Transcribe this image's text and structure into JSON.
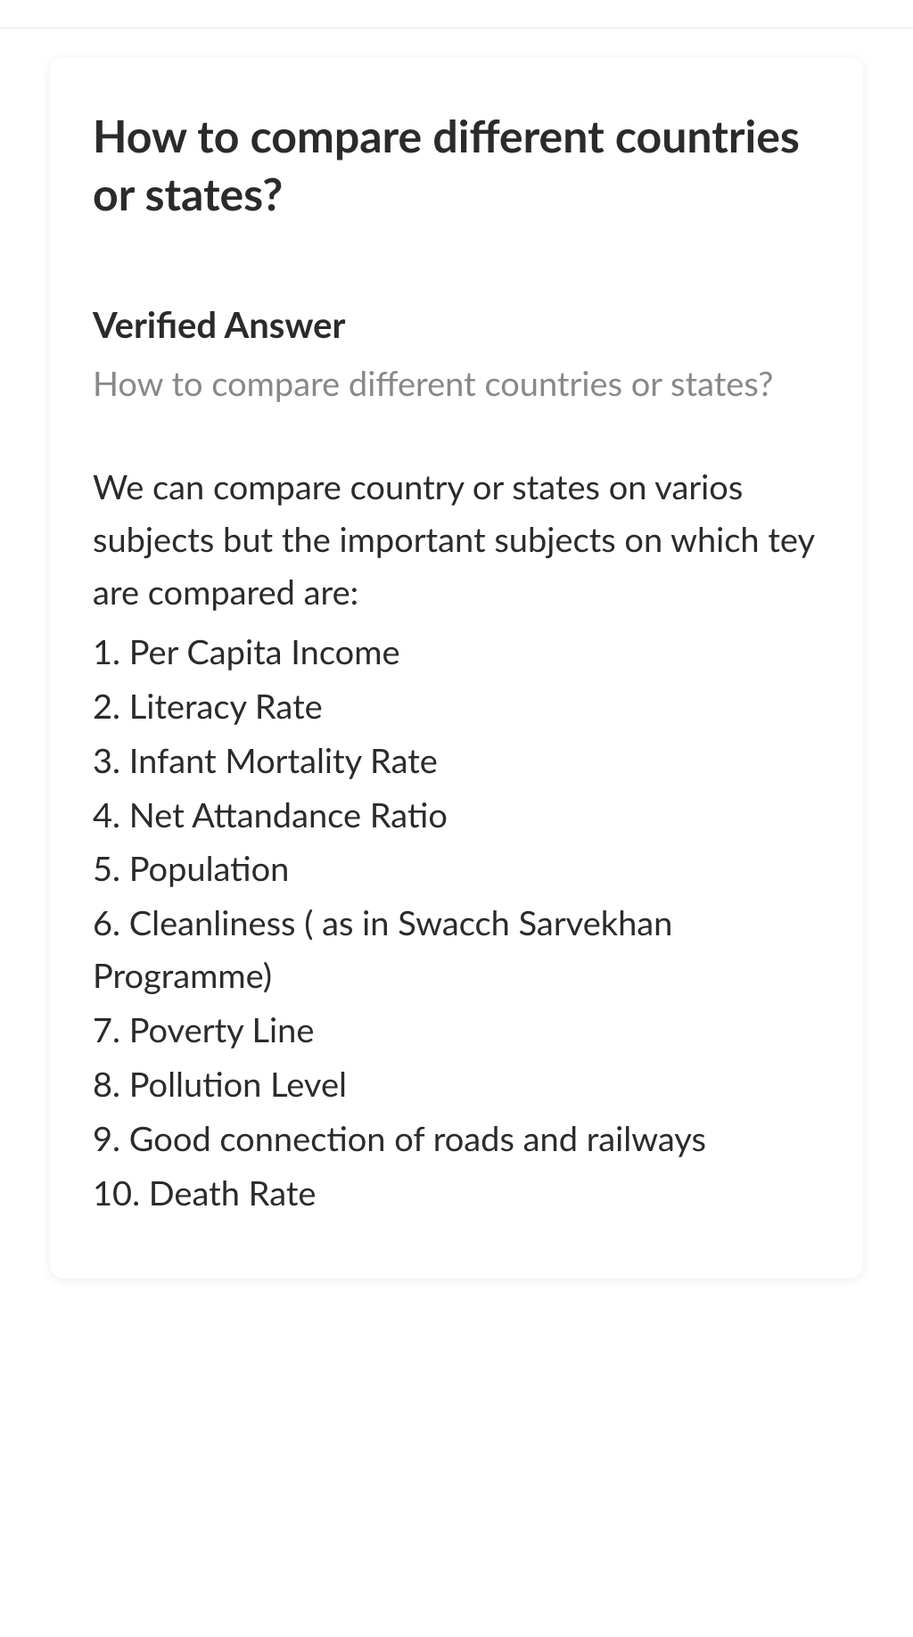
{
  "card": {
    "title": "How to compare different countries or states?",
    "verified_label": "Verified Answer",
    "question_repeat": "How to compare different countries or states?",
    "answer_intro": "We can compare country or states on varios subjects but the important subjects on which tey are compared are:",
    "list": [
      "1. Per Capita Income",
      "2. Literacy Rate",
      "3. Infant Mortality Rate",
      "4. Net Attandance Ratio",
      "5. Population",
      "6. Cleanliness ( as in Swacch Sarvekhan Programme)",
      "7. Poverty Line",
      "8. Pollution Level",
      "9. Good connection of roads and railways",
      "10. Death Rate"
    ]
  },
  "colors": {
    "text_primary": "#2b2b2b",
    "text_secondary": "#888888",
    "background": "#ffffff",
    "border": "#e5e5e5"
  },
  "typography": {
    "title_size": 50,
    "verified_size": 40,
    "body_size": 38
  }
}
